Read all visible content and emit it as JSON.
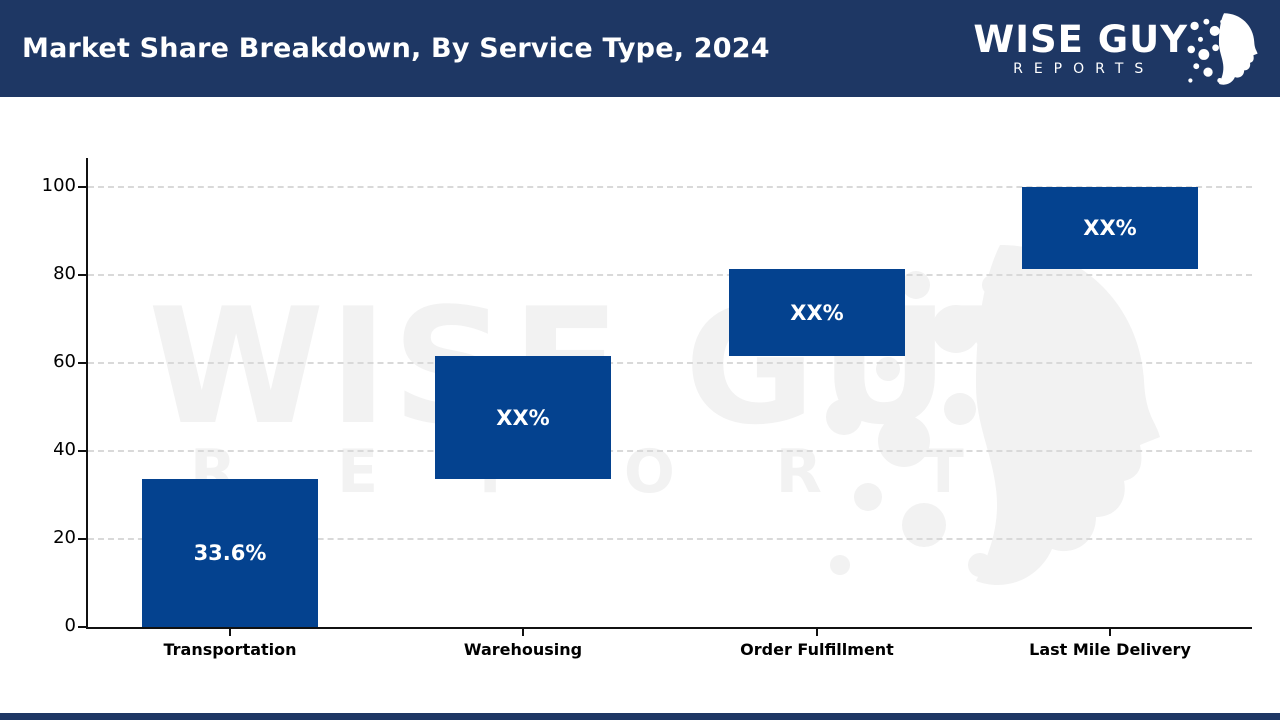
{
  "header": {
    "title": "Market Share Breakdown, By Service Type, 2024",
    "bg_color": "#1e3764",
    "logo": {
      "line1": "WISE GUY",
      "line2": "REPORTS"
    }
  },
  "watermark": {
    "line1": "WISE GUY",
    "line2": "R E P O R T S"
  },
  "footer": {
    "bg_color": "#1e3764"
  },
  "chart_data": {
    "type": "bar",
    "subtype": "waterfall-style floating segments",
    "title": "Market Share Breakdown, By Service Type, 2024",
    "xlabel": "",
    "ylabel": "",
    "categories": [
      "Transportation",
      "Warehousing",
      "Order Fulfillment",
      "Last Mile Delivery"
    ],
    "segments": [
      {
        "category": "Transportation",
        "start": 0,
        "end": 33.6,
        "label": "33.6%"
      },
      {
        "category": "Warehousing",
        "start": 33.6,
        "end": 61.5,
        "label": "XX%"
      },
      {
        "category": "Order Fulfillment",
        "start": 61.5,
        "end": 81.3,
        "label": "XX%"
      },
      {
        "category": "Last Mile Delivery",
        "start": 81.3,
        "end": 100,
        "label": "XX%"
      }
    ],
    "yticks": [
      0,
      20,
      40,
      60,
      80,
      100
    ],
    "ylim": [
      0,
      106
    ],
    "grid": "horizontal dashed",
    "legend": "none",
    "bar_color": "#04428f",
    "value_label_color": "#ffffff",
    "grid_color": "#d9d9d9",
    "axis_color": "#111111"
  }
}
